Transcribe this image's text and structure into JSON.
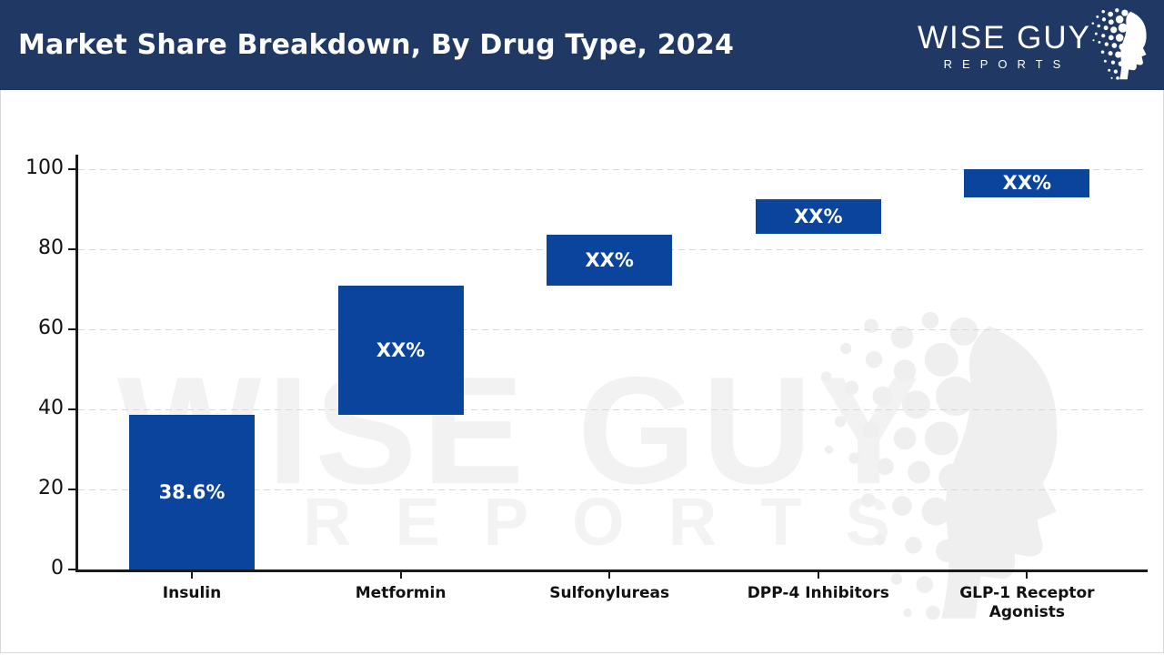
{
  "header": {
    "title": "Market Share Breakdown, By Drug Type, 2024",
    "logo": {
      "line1": "WISE GUY",
      "line2": "REPORTS"
    }
  },
  "watermark": {
    "line1": "WISE GUY",
    "line2": "REPORTS"
  },
  "colors": {
    "header_bg": "#1f3864",
    "bar": "#0a449c",
    "bar_label": "#ffffff",
    "axis": "#1a1a1a",
    "grid": "#d9d9d9",
    "watermark": "#f2f2f2",
    "card_border": "#d9d9d9"
  },
  "chart_data": {
    "type": "bar",
    "subtype": "waterfall",
    "title": "Market Share Breakdown, By Drug Type, 2024",
    "xlabel": "",
    "ylabel": "",
    "ylim": [
      0,
      104
    ],
    "yticks": [
      0,
      20,
      40,
      60,
      80,
      100
    ],
    "grid": "dashed-horizontal",
    "legend": "none",
    "categories": [
      "Insulin",
      "Metformin",
      "Sulfonylureas",
      "DPP-4 Inhibitors",
      "GLP-1 Receptor Agonists"
    ],
    "segments": [
      {
        "category": "Insulin",
        "start": 0,
        "end": 38.6,
        "label": "38.6%"
      },
      {
        "category": "Metformin",
        "start": 38.6,
        "end": 71.0,
        "label": "XX%"
      },
      {
        "category": "Sulfonylureas",
        "start": 71.0,
        "end": 83.7,
        "label": "XX%"
      },
      {
        "category": "DPP-4 Inhibitors",
        "start": 83.8,
        "end": 92.5,
        "label": "XX%"
      },
      {
        "category": "GLP-1 Receptor Agonists",
        "start": 93.0,
        "end": 100.0,
        "label": "XX%"
      }
    ]
  }
}
